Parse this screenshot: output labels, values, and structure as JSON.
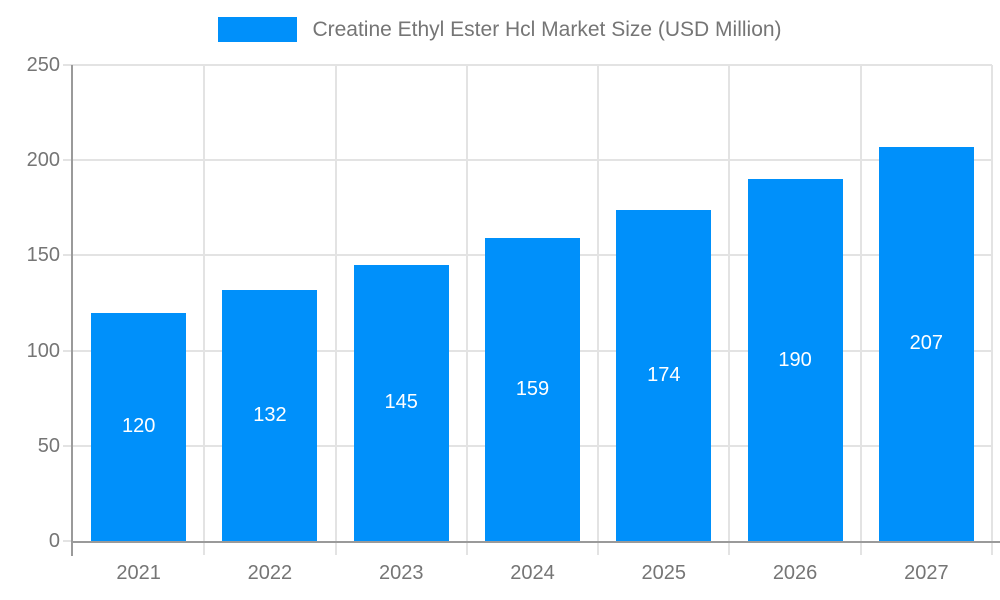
{
  "chart_data": {
    "type": "bar",
    "title": "Creatine Ethyl Ester Hcl Market Size (USD Million)",
    "categories": [
      "2021",
      "2022",
      "2023",
      "2024",
      "2025",
      "2026",
      "2027"
    ],
    "values": [
      120,
      132,
      145,
      159,
      174,
      190,
      207
    ],
    "series": [
      {
        "name": "Creatine Ethyl Ester Hcl Market Size (USD Million)",
        "values": [
          120,
          132,
          145,
          159,
          174,
          190,
          207
        ]
      }
    ],
    "xlabel": "",
    "ylabel": "",
    "ylim": [
      0,
      250
    ],
    "yticks": [
      0,
      50,
      100,
      150,
      200,
      250
    ],
    "grid": true,
    "legend_position": "top-center",
    "value_labels": "inside-center",
    "colors": {
      "bar": "#0090FA",
      "grid": "#e3e3e3",
      "axis": "#9a9a9a",
      "text": "#757575",
      "value_label": "#ffffff",
      "background": "#ffffff"
    }
  }
}
